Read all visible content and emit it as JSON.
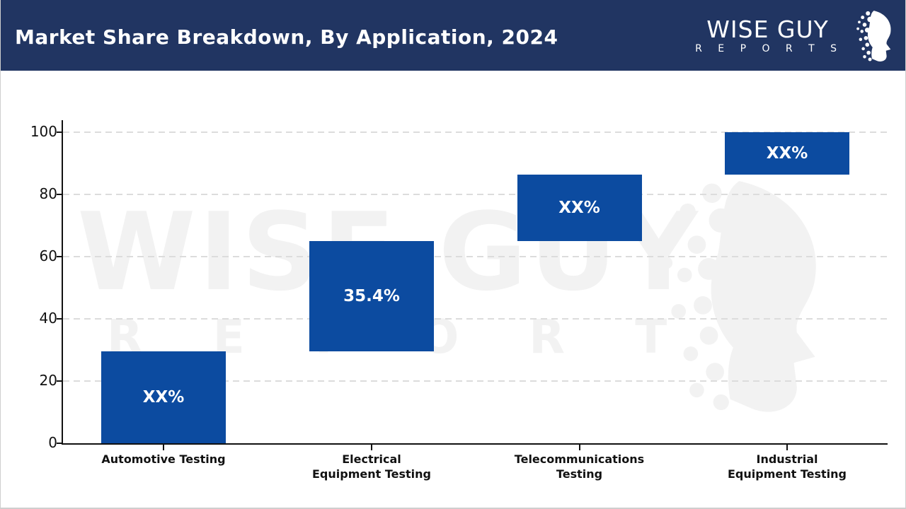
{
  "header": {
    "title": "Market Share Breakdown, By Application, 2024",
    "bg_color": "#213562",
    "logo": {
      "line1": "WISE GUY",
      "line2": "R E P O R T S"
    }
  },
  "watermark": {
    "line1": "WISE GUY",
    "line2": "R E P O R T S"
  },
  "chart_data": {
    "type": "bar",
    "subtype": "waterfall-floating-bars",
    "title": "Market Share Breakdown, By Application, 2024",
    "categories": [
      [
        "Automotive Testing"
      ],
      [
        "Electrical",
        "Equipment Testing"
      ],
      [
        "Telecommunications",
        "Testing"
      ],
      [
        "Industrial",
        "Equipment Testing"
      ]
    ],
    "segments": [
      {
        "category": "Automotive Testing",
        "start": 0,
        "end": 29.5,
        "label": "XX%"
      },
      {
        "category": "Electrical Equipment Testing",
        "start": 29.5,
        "end": 64.9,
        "label": "35.4%",
        "value": 35.4
      },
      {
        "category": "Telecommunications Testing",
        "start": 64.9,
        "end": 86.2,
        "label": "XX%"
      },
      {
        "category": "Industrial Equipment Testing",
        "start": 86.2,
        "end": 99.8,
        "label": "XX%"
      }
    ],
    "y_ticks": [
      0,
      20,
      40,
      60,
      80,
      100
    ],
    "ylim": [
      0,
      105
    ],
    "xlabel": "",
    "ylabel": "",
    "bar_color": "#0c4ba0",
    "grid": "horizontal-dashed",
    "legend": "none"
  }
}
